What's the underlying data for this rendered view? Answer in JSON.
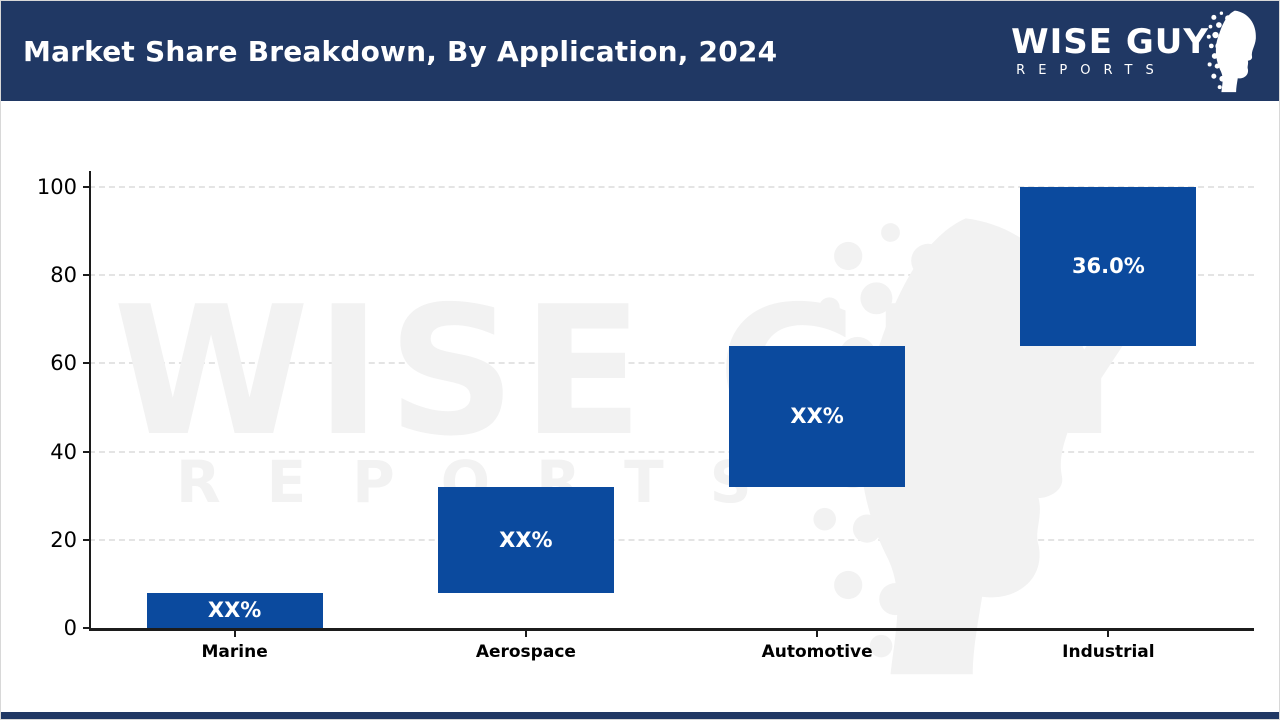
{
  "header": {
    "title": "Market Share Breakdown, By Application, 2024",
    "logo_line1": "WISE GUY",
    "logo_line2": "REPORTS"
  },
  "colors": {
    "header_bg": "#203864",
    "footer_bg": "#203864",
    "bar_fill": "#0b4a9e",
    "bar_label": "#ffffff",
    "grid": "#e4e4e4",
    "axis": "#1c1c1c",
    "watermark": "#f2f2f2"
  },
  "watermark": {
    "line1": "WISE GUY",
    "line2": "REPORTS"
  },
  "chart_data": {
    "type": "bar",
    "variant": "floating-stacked-waterfall",
    "title": "Market Share Breakdown, By Application, 2024",
    "xlabel": "",
    "ylabel": "",
    "categories": [
      "Marine",
      "Aerospace",
      "Automotive",
      "Industrial"
    ],
    "segments": [
      {
        "category": "Marine",
        "start": 0,
        "end": 8,
        "value_label": "XX%"
      },
      {
        "category": "Aerospace",
        "start": 8,
        "end": 32,
        "value_label": "XX%"
      },
      {
        "category": "Automotive",
        "start": 32,
        "end": 64,
        "value_label": "XX%"
      },
      {
        "category": "Industrial",
        "start": 64,
        "end": 100,
        "value_label": "36.0%"
      }
    ],
    "y_ticks": [
      0,
      20,
      40,
      60,
      80,
      100
    ],
    "ylim": [
      0,
      104
    ],
    "grid": "horizontal-dashed",
    "legend": "none"
  }
}
